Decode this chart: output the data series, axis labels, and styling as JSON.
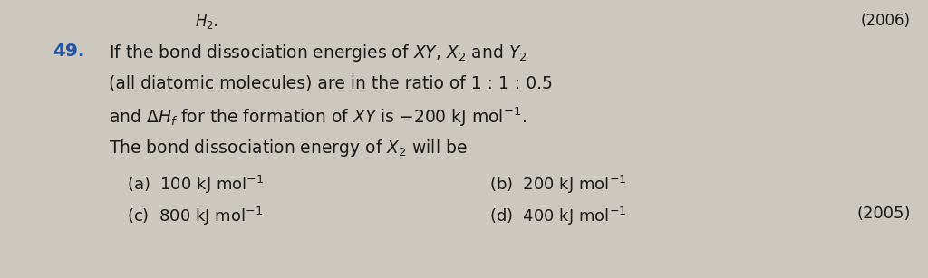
{
  "bg_color": "#ccc8c0",
  "text_color": "#1a1a1a",
  "number_color": "#2255aa",
  "top_left_text": "H$_2$.",
  "top_right_text": "(2006)",
  "question_number": "49.",
  "line1": "If the bond dissociation energies of $XY$, $X_2$ and $Y_2$",
  "line2": "(all diatomic molecules) are in the ratio of 1 : 1 : 0.5",
  "line3": "and $\\Delta H_f$ for the formation of $XY$ is −200 kJ mol$^{-1}$.",
  "line4": "The bond dissociation energy of $X_2$ will be",
  "opt_a": "(a)  100 kJ mol$^{-1}$",
  "opt_b": "(b)  200 kJ mol$^{-1}$",
  "opt_c": "(c)  800 kJ mol$^{-1}$",
  "opt_d": "(d)  400 kJ mol$^{-1}$",
  "year": "(2005)",
  "font_size_main": 13.5,
  "font_size_options": 13.0,
  "font_size_top": 12.0,
  "fig_width": 10.24,
  "fig_height": 3.07,
  "dpi": 100
}
